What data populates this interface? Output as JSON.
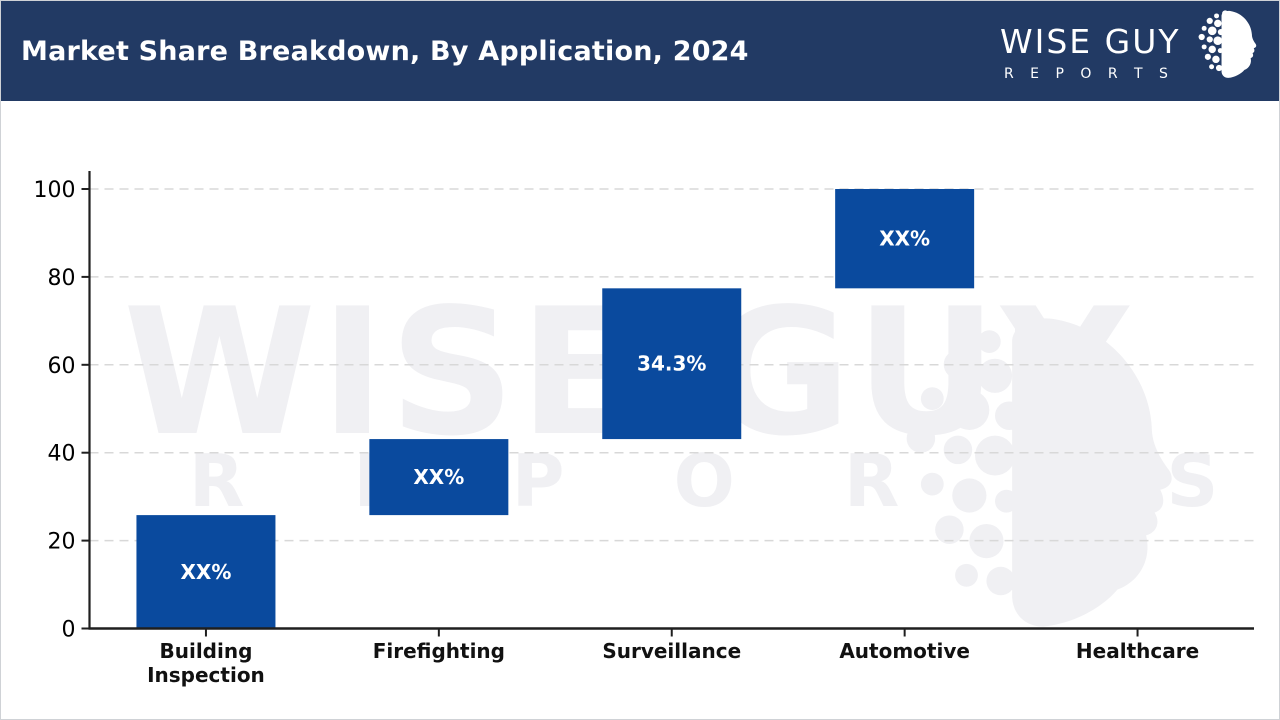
{
  "header": {
    "title": "Market Share Breakdown, By Application, 2024",
    "bg_color": "#223a64",
    "logo": {
      "line1": "WISE GUY",
      "line2": "R E P O R T S"
    }
  },
  "watermark": {
    "line1": "WISE GUY",
    "line2": "R E P O R T S"
  },
  "chart_data": {
    "type": "bar",
    "subtype": "waterfall",
    "title": "Market Share Breakdown, By Application, 2024",
    "xlabel": "",
    "ylabel": "",
    "categories": [
      "Building\nInspection",
      "Firefighting",
      "Surveillance",
      "Automotive",
      "Healthcare"
    ],
    "segments": [
      {
        "category": "Building Inspection",
        "start": 0,
        "end": 25.8,
        "label": "XX%",
        "masked": true
      },
      {
        "category": "Firefighting",
        "start": 25.8,
        "end": 43.1,
        "label": "XX%",
        "masked": true
      },
      {
        "category": "Surveillance",
        "start": 43.1,
        "end": 77.4,
        "label": "34.3%",
        "masked": false
      },
      {
        "category": "Automotive",
        "start": 77.4,
        "end": 100.0,
        "label": "XX%",
        "masked": true
      },
      {
        "category": "Healthcare",
        "start": null,
        "end": null,
        "label": null,
        "masked": true
      }
    ],
    "yticks": [
      0,
      20,
      40,
      60,
      80,
      100
    ],
    "ylim": [
      0,
      104
    ],
    "grid": "horizontal-dashed",
    "legend": "none",
    "bar_color": "#0a4a9e",
    "bar_label_color": "#ffffff",
    "grid_color": "#d8d8d8",
    "axis_color": "#1f1f1f",
    "tick_label_color": "#000000",
    "category_label_color": "#111111",
    "watermark_color": "#f0f0f3"
  }
}
